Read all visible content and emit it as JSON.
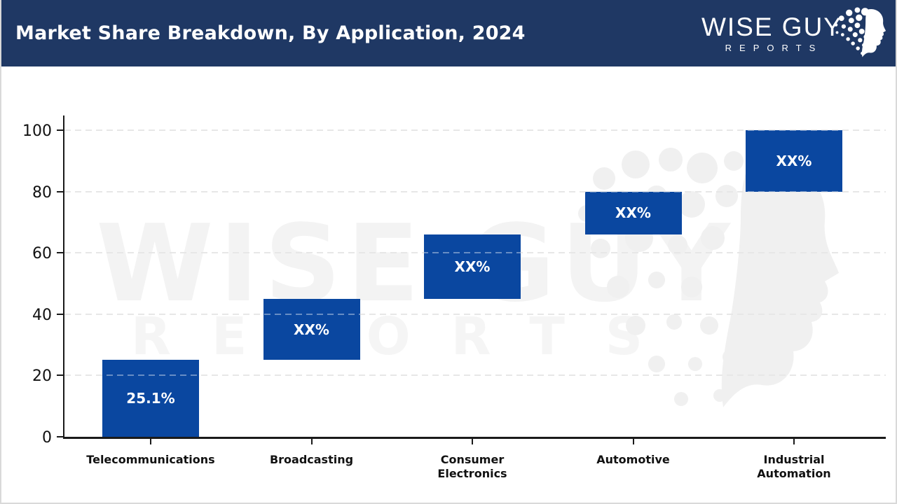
{
  "header": {
    "title": "Market Share Breakdown, By Application, 2024",
    "logo": {
      "line1": "WISE GUY",
      "line2": "REPORTS"
    }
  },
  "watermark": {
    "line1": "WISE GUY",
    "line2": "REPORTS"
  },
  "colors": {
    "header_bg": "#1f3864",
    "bar": "#0a47a0",
    "grid": "#d9d9d9",
    "axis": "#1a1a1a",
    "title_text": "#ffffff",
    "watermark_text": "#f3f3f3"
  },
  "chart_data": {
    "type": "bar",
    "variant": "waterfall",
    "title": "Market Share Breakdown, By Application, 2024",
    "categories": [
      "Telecommunications",
      "Broadcasting",
      "Consumer\nElectronics",
      "Automotive",
      "Industrial\nAutomation"
    ],
    "segments": [
      {
        "category": "Telecommunications",
        "start": 0,
        "end": 25.1,
        "label": "25.1%"
      },
      {
        "category": "Broadcasting",
        "start": 25.1,
        "end": 45,
        "label": "XX%"
      },
      {
        "category": "Consumer Electronics",
        "start": 45,
        "end": 66,
        "label": "XX%"
      },
      {
        "category": "Automotive",
        "start": 66,
        "end": 80,
        "label": "XX%"
      },
      {
        "category": "Industrial Automation",
        "start": 80,
        "end": 100,
        "label": "XX%"
      }
    ],
    "xlabel": "",
    "ylabel": "",
    "yticks": [
      0,
      20,
      40,
      60,
      80,
      100
    ],
    "ylim": [
      0,
      105.5
    ],
    "grid": "dashed-horizontal",
    "legend": "none",
    "bar_color": "#0a47a0",
    "value_label_color": "#ffffff"
  }
}
